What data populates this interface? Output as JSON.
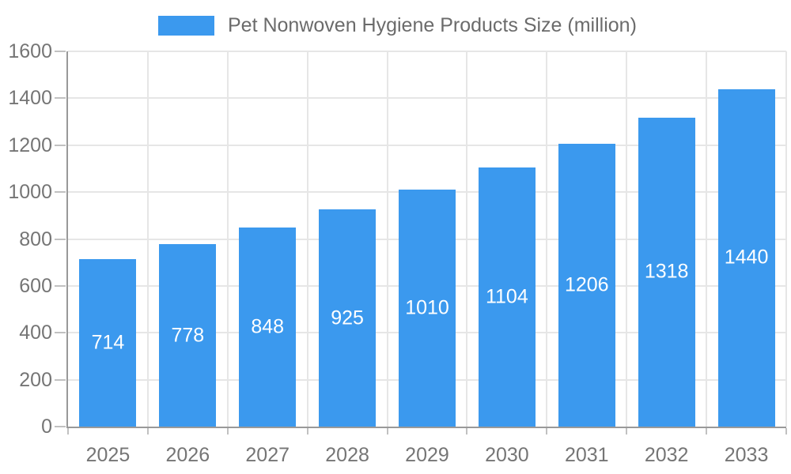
{
  "chart_data": {
    "type": "bar",
    "legend": "Pet Nonwoven Hygiene Products Size (million)",
    "categories": [
      "2025",
      "2026",
      "2027",
      "2028",
      "2029",
      "2030",
      "2031",
      "2032",
      "2033"
    ],
    "values": [
      714,
      778,
      848,
      925,
      1010,
      1104,
      1206,
      1318,
      1440
    ],
    "ylim": [
      0,
      1600
    ],
    "ytick_step": 200,
    "y_tick_labels": [
      "0",
      "200",
      "400",
      "600",
      "800",
      "1000",
      "1200",
      "1400",
      "1600"
    ],
    "grid": "on",
    "legend_position": "top"
  },
  "colors": {
    "bar": "#3B99EE",
    "gridline": "#E6E6E6",
    "axis_line": "#999999",
    "tick": "#C1C1C1",
    "axis_text": "#757575",
    "legend_text": "#6B6B6B",
    "bar_value_text": "#FFFFFF",
    "background": "#FFFFFF"
  }
}
